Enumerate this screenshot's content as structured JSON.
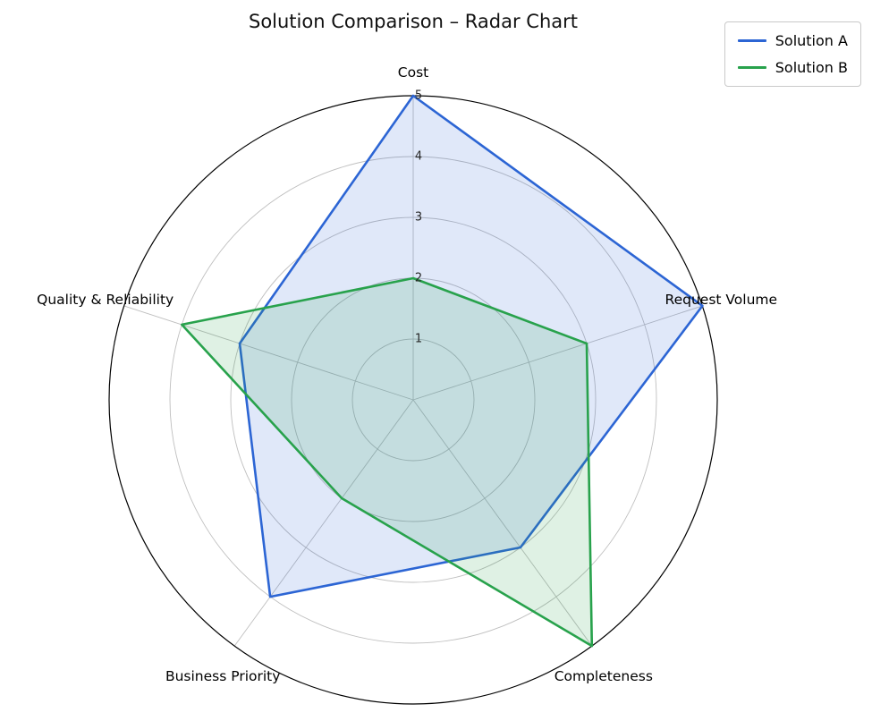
{
  "title": "Solution Comparison – Radar Chart",
  "chart_data": {
    "type": "radar",
    "title": "Solution Comparison – Radar Chart",
    "categories": [
      "Cost",
      "Request Volume",
      "Completeness",
      "Business Priority",
      "Quality & Reliability"
    ],
    "series": [
      {
        "name": "Solution A",
        "color": "#2c65d4",
        "fill_opacity": 0.15,
        "values": [
          5,
          5,
          3,
          4,
          3
        ]
      },
      {
        "name": "Solution B",
        "color": "#28a24c",
        "fill_opacity": 0.15,
        "values": [
          2,
          3,
          5,
          2,
          4
        ]
      }
    ],
    "ticks": [
      1,
      2,
      3,
      4,
      5
    ],
    "rmax": 5,
    "grid": true,
    "legend_position": "upper right",
    "grid_color": "#bfbfbf",
    "outer_ring_color": "#000000"
  },
  "legend": {
    "items": [
      {
        "label": "Solution A"
      },
      {
        "label": "Solution B"
      }
    ]
  }
}
